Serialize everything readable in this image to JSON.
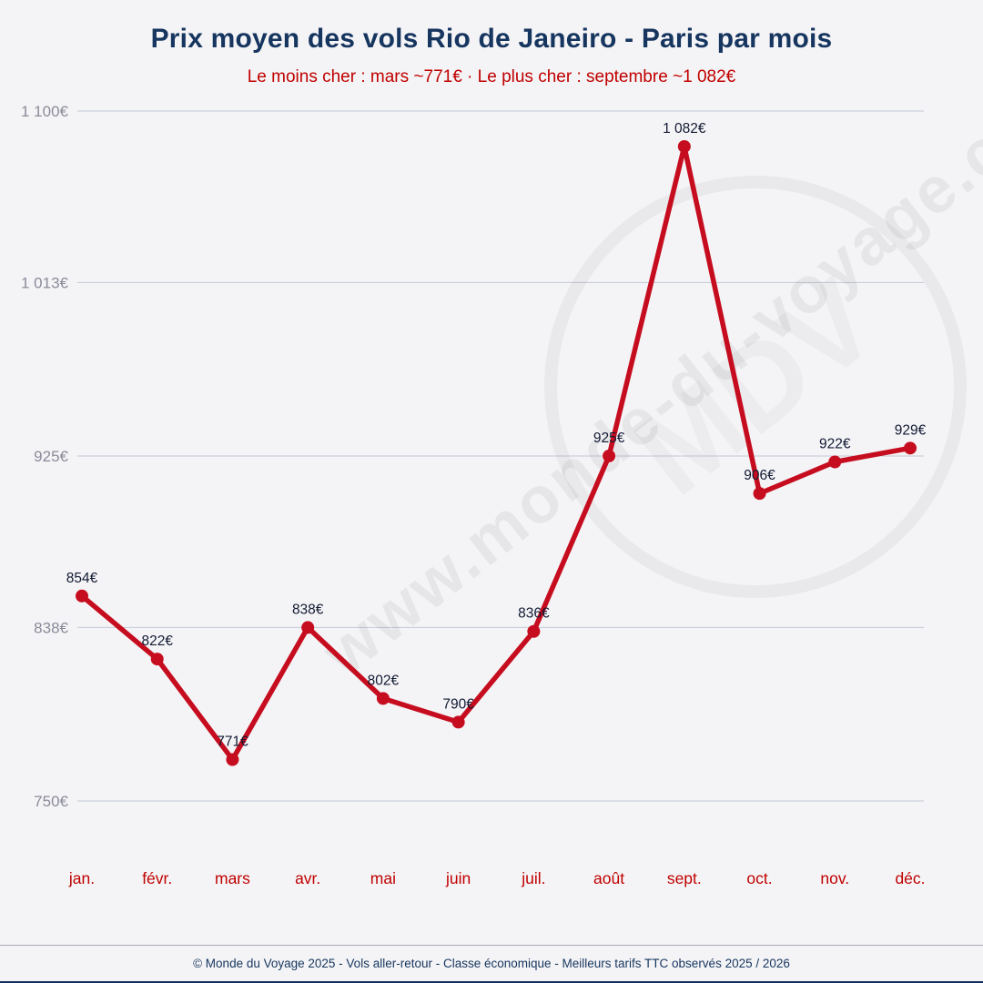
{
  "header": {
    "title": "Prix moyen des vols Rio de Janeiro - Paris par mois",
    "subtitle": "Le moins cher : mars ~771€ · Le plus cher : septembre ~1 082€"
  },
  "watermark": {
    "text": "www.monde-du-voyage.com",
    "monogram": "MDV"
  },
  "footer": {
    "text": "© Monde du Voyage 2025 - Vols aller-retour - Classe économique - Meilleurs tarifs TTC observés 2025 / 2026"
  },
  "colors": {
    "background": "#f4f4f6",
    "title": "#16355f",
    "subtitle": "#c00000",
    "line": "#c60d1f",
    "point": "#c60d1f",
    "point_label": "#121a33",
    "axis_label": "#8b8b9b",
    "x_label": "#c00000",
    "grid": "#c4c9d7"
  },
  "chart_data": {
    "type": "line",
    "title": "Prix moyen des vols Rio de Janeiro - Paris par mois",
    "categories": [
      "jan.",
      "févr.",
      "mars",
      "avr.",
      "mai",
      "juin",
      "juil.",
      "août",
      "sept.",
      "oct.",
      "nov.",
      "déc."
    ],
    "values": [
      854,
      822,
      771,
      838,
      802,
      790,
      836,
      925,
      1082,
      906,
      922,
      929
    ],
    "point_labels": [
      "854€",
      "822€",
      "771€",
      "838€",
      "802€",
      "790€",
      "836€",
      "925€",
      "1 082€",
      "906€",
      "922€",
      "929€"
    ],
    "y_ticks": [
      750,
      838,
      925,
      1013,
      1100
    ],
    "y_tick_labels": [
      "750€",
      "838€",
      "925€",
      "1 013€",
      "1 100€"
    ],
    "ylim": [
      750,
      1100
    ],
    "xlabel": "",
    "ylabel": "",
    "grid": true,
    "legend": "none",
    "min_note": "mars ~771€",
    "max_note": "septembre ~1 082€"
  }
}
